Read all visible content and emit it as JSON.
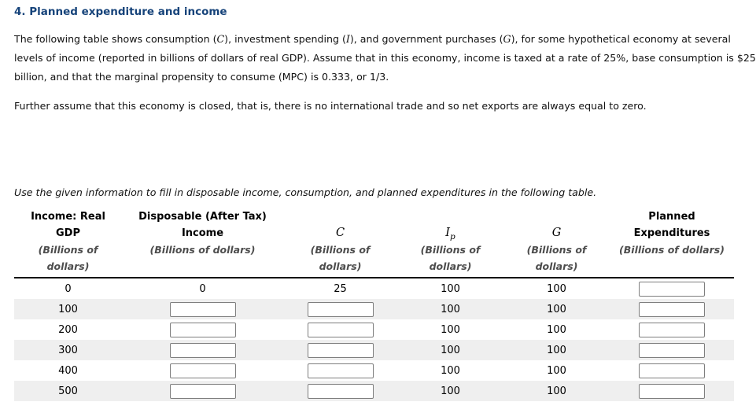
{
  "title": "4. Planned expenditure and income",
  "paragraphs": {
    "intro": [
      {
        "t": "The following table shows consumption ("
      },
      {
        "t": "C",
        "math": true
      },
      {
        "t": "), investment spending ("
      },
      {
        "t": "I",
        "math": true
      },
      {
        "t": "), and government purchases ("
      },
      {
        "t": "G",
        "math": true
      },
      {
        "t": "), for some hypothetical economy at several"
      },
      {
        "br": true
      },
      {
        "t": "levels of income (reported in billions of dollars of real GDP). Assume that in this economy, income is taxed at a rate of 25%, base consumption is $25"
      },
      {
        "br": true
      },
      {
        "t": "billion, and that the marginal propensity to consume (MPC) is 0.333, or 1/3."
      }
    ],
    "closed": [
      {
        "t": "Further assume that this economy is closed, that is, there is no international trade and so net exports are always equal to zero."
      }
    ]
  },
  "instruction": "Use the given information to fill in disposable income, consumption, and planned expenditures in the following table.",
  "table": {
    "columns": [
      {
        "id": "income-real-gdp",
        "lines": [
          "Income: Real",
          "GDP"
        ],
        "unit": [
          "(Billions of",
          "dollars)"
        ]
      },
      {
        "id": "disposable-income",
        "lines": [
          "Disposable (After Tax)",
          "Income"
        ],
        "unit": [
          "(Billions of dollars)"
        ]
      },
      {
        "id": "consumption",
        "symbol": "C",
        "subscript": "",
        "unit": [
          "(Billions of",
          "dollars)"
        ]
      },
      {
        "id": "planned-investment",
        "symbol": "I",
        "subscript": "p",
        "unit": [
          "(Billions of",
          "dollars)"
        ]
      },
      {
        "id": "government-purchases",
        "symbol": "G",
        "subscript": "",
        "unit": [
          "(Billions of",
          "dollars)"
        ]
      },
      {
        "id": "planned-expenditures",
        "lines": [
          "Planned",
          "Expenditures"
        ],
        "unit": [
          "(Billions of dollars)"
        ]
      }
    ],
    "rows": [
      {
        "income": "0",
        "disposable": "0",
        "consumption": "25",
        "investment": "100",
        "government": "100",
        "planned": null
      },
      {
        "income": "100",
        "disposable": null,
        "consumption": null,
        "investment": "100",
        "government": "100",
        "planned": null
      },
      {
        "income": "200",
        "disposable": null,
        "consumption": null,
        "investment": "100",
        "government": "100",
        "planned": null
      },
      {
        "income": "300",
        "disposable": null,
        "consumption": null,
        "investment": "100",
        "government": "100",
        "planned": null
      },
      {
        "income": "400",
        "disposable": null,
        "consumption": null,
        "investment": "100",
        "government": "100",
        "planned": null
      },
      {
        "income": "500",
        "disposable": null,
        "consumption": null,
        "investment": "100",
        "government": "100",
        "planned": null
      }
    ]
  },
  "colors": {
    "title_blue": "#16437a",
    "row_stripe": "#efefef",
    "header_rule": "#000000",
    "unit_gray": "#4d4d4d",
    "input_border": "#7e7e7e"
  }
}
